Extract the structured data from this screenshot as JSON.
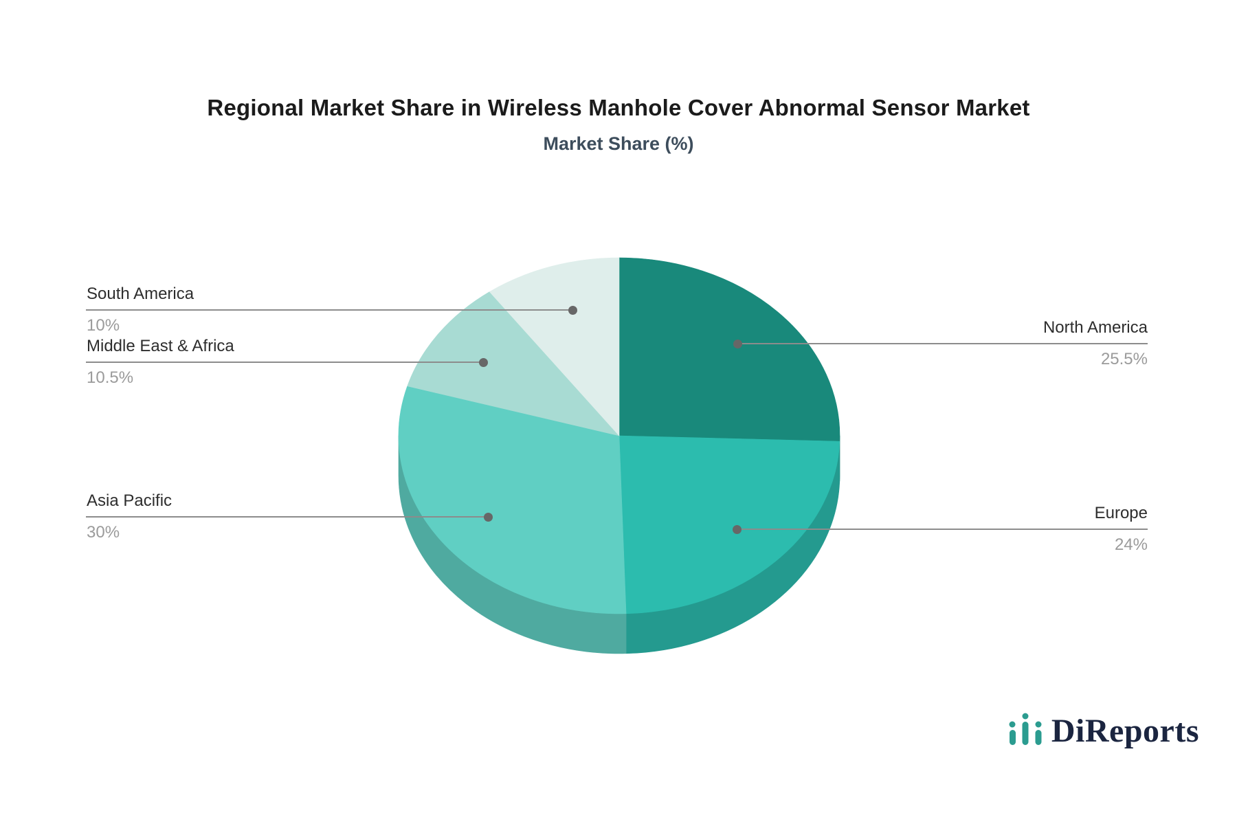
{
  "title": "Regional Market Share in Wireless Manhole Cover Abnormal Sensor Market",
  "subtitle": "Market Share (%)",
  "logo": {
    "text": "DiReports",
    "icon": "bar-chart-icon",
    "icon_color": "#2b9c90",
    "text_color": "#1b2540"
  },
  "chart_data": {
    "type": "pie",
    "style": "3d",
    "title": "Regional Market Share in Wireless Manhole Cover Abnormal Sensor Market",
    "subtitle": "Market Share (%)",
    "unit": "%",
    "start_angle_deg": 0,
    "direction": "clockwise",
    "legend_position": "callout-labels",
    "slices": [
      {
        "label": "North America",
        "value": 25.5,
        "pct_label": "25.5%",
        "color": "#19897B"
      },
      {
        "label": "Europe",
        "value": 24,
        "pct_label": "24%",
        "color": "#2CBCAE"
      },
      {
        "label": "Asia Pacific",
        "value": 30,
        "pct_label": "30%",
        "color": "#60CFC3"
      },
      {
        "label": "Middle East & Africa",
        "value": 10.5,
        "pct_label": "10.5%",
        "color": "#A8DBD3"
      },
      {
        "label": "South America",
        "value": 10,
        "pct_label": "10%",
        "color": "#DFEEEB"
      }
    ]
  }
}
